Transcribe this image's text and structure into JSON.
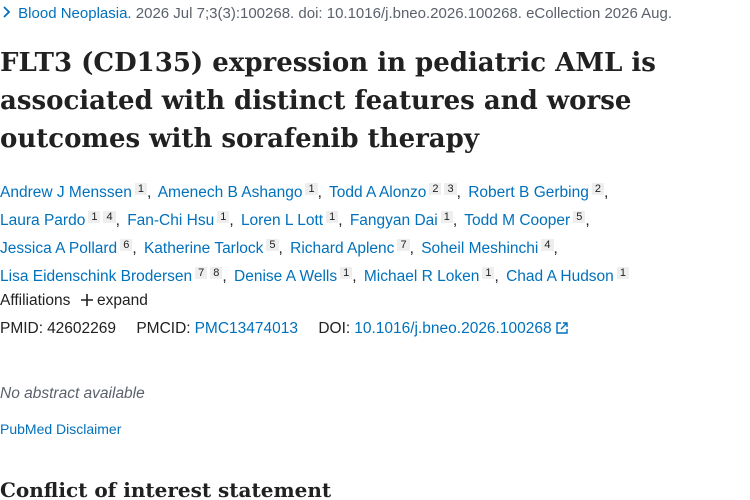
{
  "citation": {
    "journal": "Blood Neoplasia.",
    "details": "2026 Jul 7;3(3):100268. doi: 10.1016/j.bneo.2026.100268. eCollection 2026 Aug."
  },
  "title": "FLT3 (CD135) expression in pediatric AML is associated with distinct features and worse outcomes with sorafenib therapy",
  "authors": [
    {
      "name": "Andrew J Menssen",
      "affiliations": [
        "1"
      ]
    },
    {
      "name": "Amenech B Ashango",
      "affiliations": [
        "1"
      ]
    },
    {
      "name": "Todd A Alonzo",
      "affiliations": [
        "2",
        "3"
      ]
    },
    {
      "name": "Robert B Gerbing",
      "affiliations": [
        "2"
      ]
    },
    {
      "name": "Laura Pardo",
      "affiliations": [
        "1",
        "4"
      ]
    },
    {
      "name": "Fan-Chi Hsu",
      "affiliations": [
        "1"
      ]
    },
    {
      "name": "Loren L Lott",
      "affiliations": [
        "1"
      ]
    },
    {
      "name": "Fangyan Dai",
      "affiliations": [
        "1"
      ]
    },
    {
      "name": "Todd M Cooper",
      "affiliations": [
        "5"
      ]
    },
    {
      "name": "Jessica A Pollard",
      "affiliations": [
        "6"
      ]
    },
    {
      "name": "Katherine Tarlock",
      "affiliations": [
        "5"
      ]
    },
    {
      "name": "Richard Aplenc",
      "affiliations": [
        "7"
      ]
    },
    {
      "name": "Soheil Meshinchi",
      "affiliations": [
        "4"
      ]
    },
    {
      "name": "Lisa Eidenschink Brodersen",
      "affiliations": [
        "7",
        "8"
      ]
    },
    {
      "name": "Denise A Wells",
      "affiliations": [
        "1"
      ]
    },
    {
      "name": "Michael R Loken",
      "affiliations": [
        "1"
      ]
    },
    {
      "name": "Chad A Hudson",
      "affiliations": [
        "1"
      ]
    }
  ],
  "affiliations": {
    "label": "Affiliations",
    "toggle": "expand"
  },
  "identifiers": {
    "pmid_label": "PMID:",
    "pmid": "42602269",
    "pmcid_label": "PMCID:",
    "pmcid": "PMC13474013",
    "doi_label": "DOI:",
    "doi": "10.1016/j.bneo.2026.100268"
  },
  "abstract": "No abstract available",
  "disclaimer": "PubMed Disclaimer",
  "section_heading": "Conflict of interest statement"
}
